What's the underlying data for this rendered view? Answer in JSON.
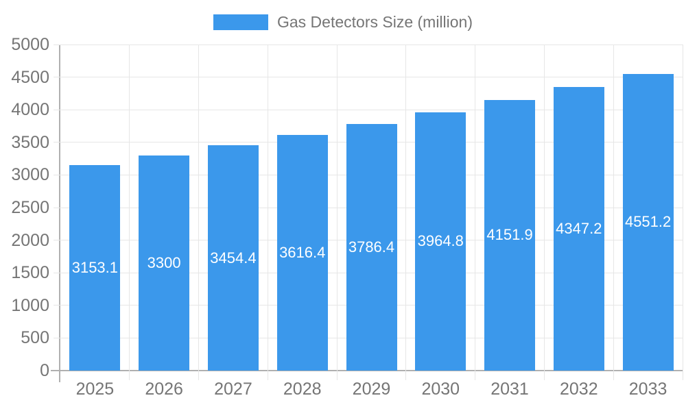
{
  "legend": {
    "label": "Gas Detectors Size (million)"
  },
  "chart_data": {
    "type": "bar",
    "title": "Gas Detectors Size (million)",
    "categories": [
      "2025",
      "2026",
      "2027",
      "2028",
      "2029",
      "2030",
      "2031",
      "2032",
      "2033"
    ],
    "series": [
      {
        "name": "Gas Detectors Size (million)",
        "values": [
          3153.1,
          3300,
          3454.4,
          3616.4,
          3786.4,
          3964.8,
          4151.9,
          4347.2,
          4551.2
        ]
      }
    ],
    "value_labels": [
      "3153.1",
      "3300",
      "3454.4",
      "3616.4",
      "3786.4",
      "3964.8",
      "4151.9",
      "4347.2",
      "4551.2"
    ],
    "xlabel": "",
    "ylabel": "",
    "ylim": [
      0,
      5000
    ],
    "ytick_step": 500,
    "yticks": [
      0,
      500,
      1000,
      1500,
      2000,
      2500,
      3000,
      3500,
      4000,
      4500,
      5000
    ],
    "grid": true,
    "legend_position": "top",
    "colors": {
      "bar": "#3b98eb",
      "grid": "#e6e6e6",
      "axis": "#b0b0b0",
      "tick_label": "#757575",
      "value_label": "#ffffff",
      "background": "#ffffff"
    }
  }
}
